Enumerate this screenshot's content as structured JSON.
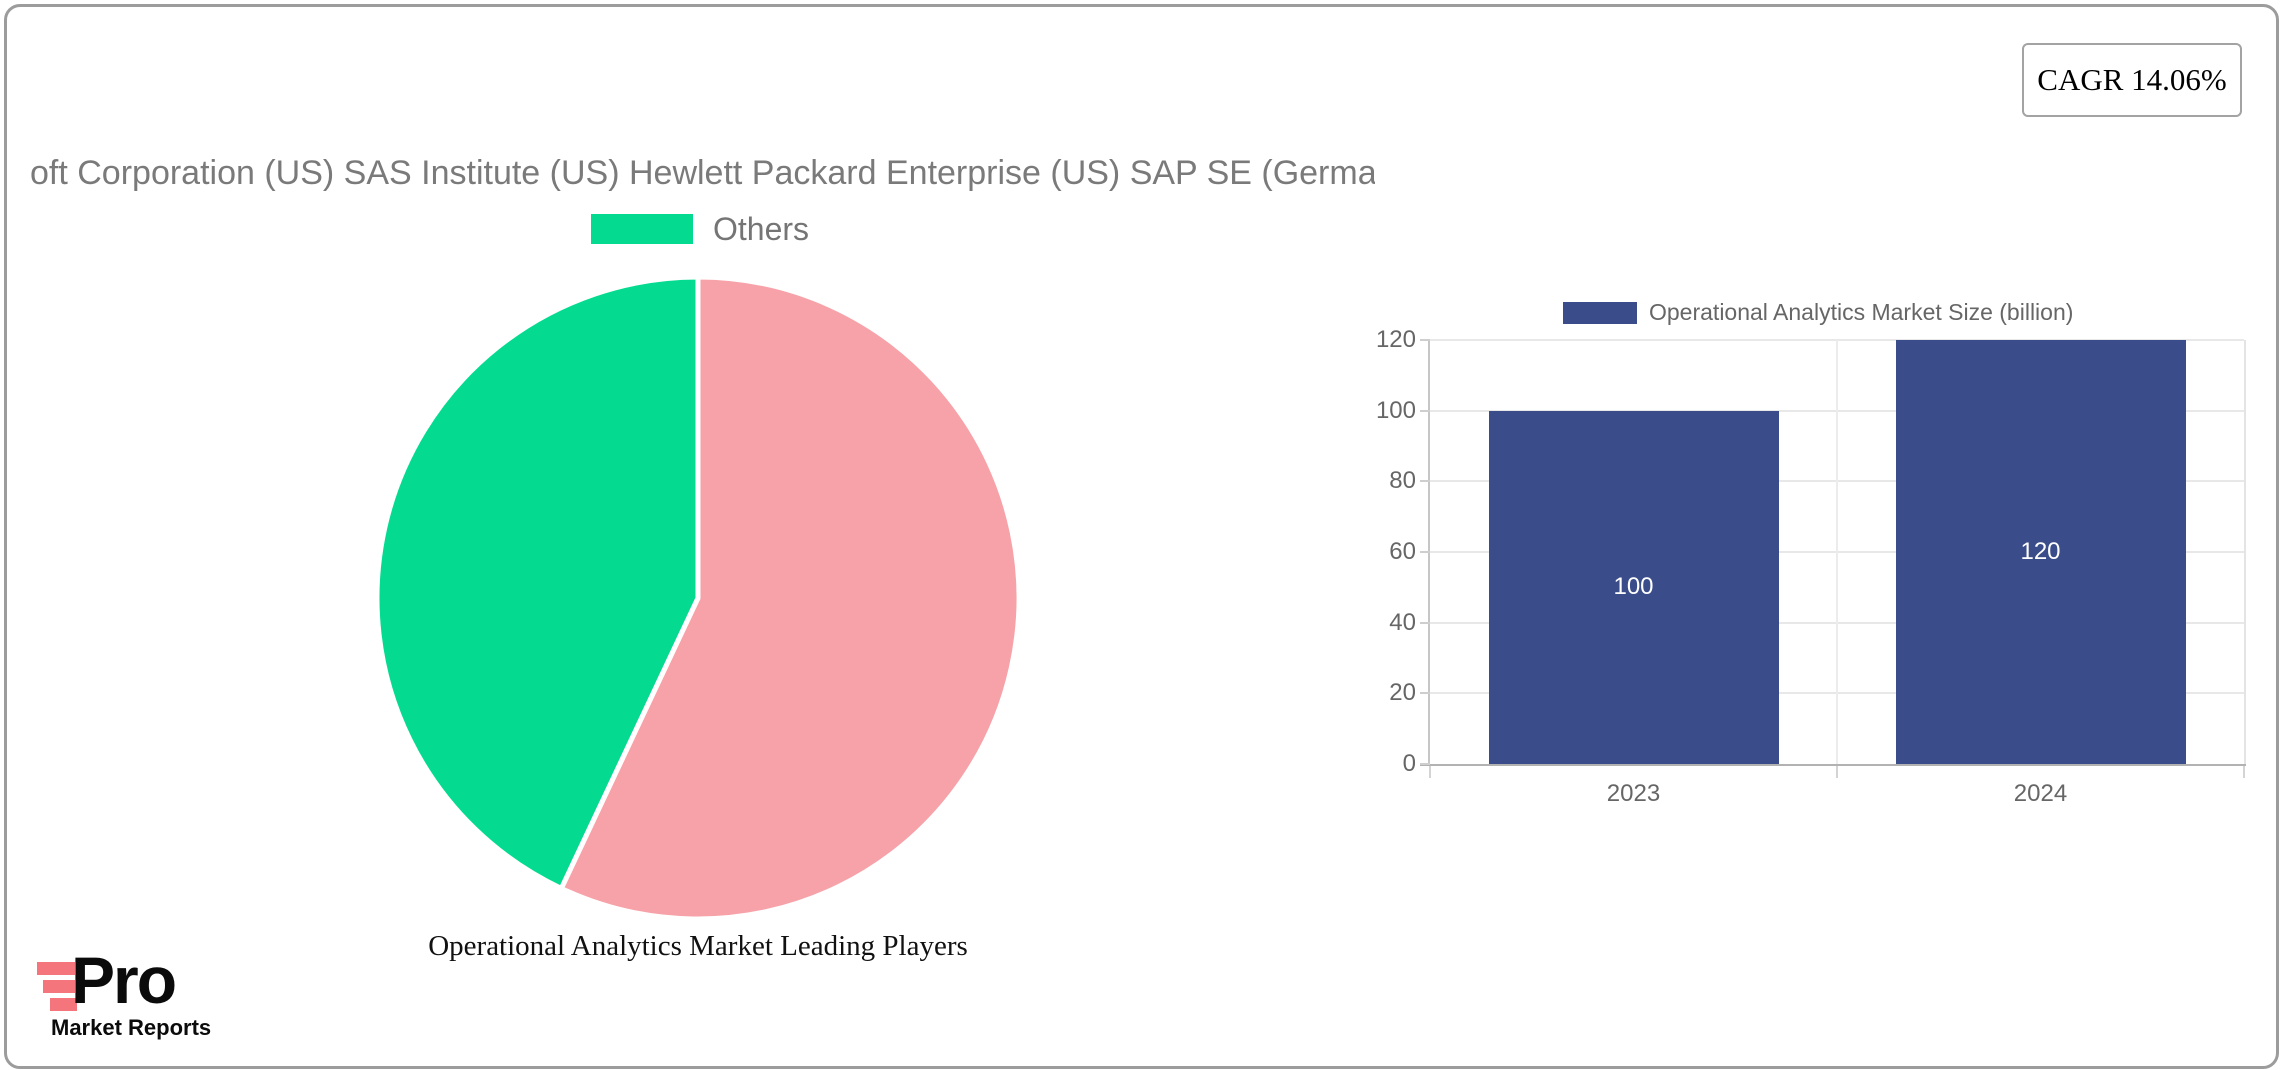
{
  "card": {
    "border_color": "#9c9c9c",
    "background": "#ffffff"
  },
  "header": {
    "players_title": "oft Corporation (US) SAS Institute (US) Hewlett Packard Enterprise (US) SAP SE (Germany) A",
    "cagr_badge": "CAGR 14.06%"
  },
  "logo": {
    "word": "Pro",
    "subtitle": "Market Reports",
    "accent_color": "#f4757c",
    "text_color": "#0b0b0b"
  },
  "chart_data": [
    {
      "type": "pie",
      "title": "Operational Analytics Market Leading Players",
      "legend_position": "top",
      "legend_visible_entries": [
        "Others"
      ],
      "start_angle_deg": 0,
      "direction": "clockwise",
      "slices": [
        {
          "label": "",
          "value": 57,
          "color": "#f6a2a8"
        },
        {
          "label": "Others",
          "value": 43,
          "color": "#05db90"
        }
      ],
      "slice_border_color": "#ffffff"
    },
    {
      "type": "bar",
      "legend_label": "Operational Analytics Market Size (billion)",
      "categories": [
        "2023",
        "2024"
      ],
      "values": [
        100,
        120
      ],
      "bar_color": "#3a4d8a",
      "value_label_color": "#ffffff",
      "ylim": [
        0,
        120
      ],
      "yticks": [
        0,
        20,
        40,
        60,
        80,
        100,
        120
      ],
      "grid": true,
      "legend_position": "top"
    }
  ]
}
